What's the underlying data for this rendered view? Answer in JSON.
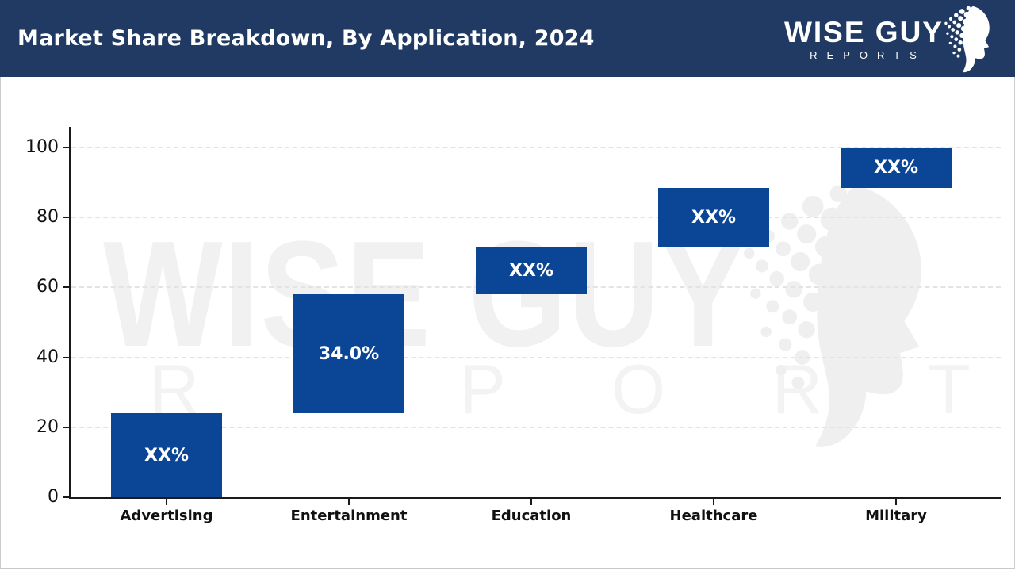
{
  "header": {
    "title": "Market Share Breakdown, By Application, 2024",
    "brand": {
      "line1": "WISE GUY",
      "line2": "REPORTS"
    }
  },
  "watermark": {
    "line1": "WISE GUY",
    "line2": "R E P O R T S"
  },
  "colors": {
    "header_bg": "#213A63",
    "bar": "#0B4596",
    "bar_label": "#FFFFFF",
    "grid": "#E3E3E3",
    "axis": "#1A1A1A",
    "watermark": "#F1F1F1"
  },
  "chart_data": {
    "type": "bar",
    "subtype": "floating-waterfall",
    "title": "Market Share Breakdown, By Application, 2024",
    "categories": [
      "Advertising",
      "Entertainment",
      "Education",
      "Healthcare",
      "Military"
    ],
    "bars": [
      {
        "category": "Advertising",
        "start": 0,
        "end": 24,
        "label": "XX%"
      },
      {
        "category": "Entertainment",
        "start": 24,
        "end": 58,
        "label": "34.0%",
        "value": 34.0
      },
      {
        "category": "Education",
        "start": 58,
        "end": 71.5,
        "label": "XX%"
      },
      {
        "category": "Healthcare",
        "start": 71.5,
        "end": 88.5,
        "label": "XX%"
      },
      {
        "category": "Military",
        "start": 88.5,
        "end": 100,
        "label": "XX%"
      }
    ],
    "yticks": [
      0,
      20,
      40,
      60,
      80,
      100
    ],
    "ylim": [
      0,
      106
    ],
    "xlabel": "",
    "ylabel": "",
    "grid": true,
    "grid_style": "dashed",
    "legend": false
  }
}
